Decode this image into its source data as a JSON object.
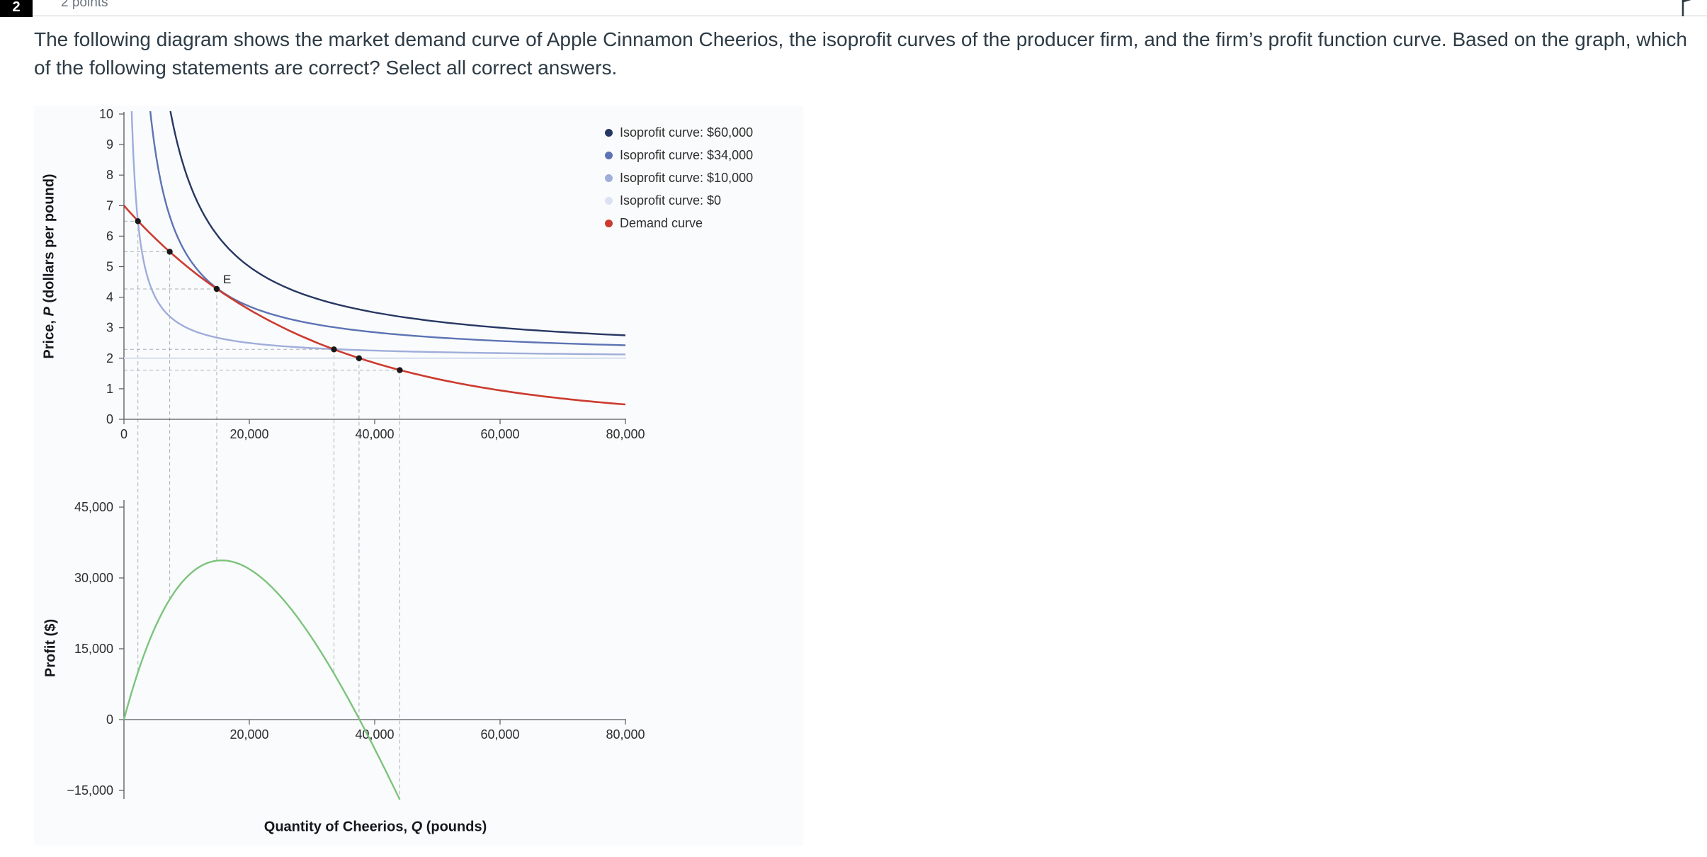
{
  "header": {
    "question_number": "2",
    "points_label": "2 points"
  },
  "question": {
    "text": "The following diagram shows the market demand curve of Apple Cinnamon Cheerios, the isoprofit curves of the producer firm, and the firm’s profit function curve. Based on the graph, which of the following statements are correct? Select all correct answers."
  },
  "chart_data": {
    "type": "line",
    "panels": [
      {
        "name": "price-quantity-panel",
        "ylabel_parts": [
          "Price, ",
          "P",
          " (dollars per pound)"
        ],
        "ylim": [
          0,
          10
        ],
        "yticks": [
          0,
          1,
          2,
          3,
          4,
          5,
          6,
          7,
          8,
          9,
          10
        ],
        "ytick_labels": [
          "0",
          "1",
          "2",
          "3",
          "4",
          "5",
          "6",
          "7",
          "8",
          "9",
          "10"
        ],
        "xlim": [
          0,
          80000
        ],
        "xticks": [
          0,
          20000,
          40000,
          60000,
          80000
        ],
        "xtick_labels": [
          "0",
          "20,000",
          "40,000",
          "60,000",
          "80,000"
        ],
        "grid": false,
        "legend_position": "top-right",
        "series": [
          {
            "name": "Isoprofit curve: $60,000",
            "color": "#273763",
            "model": "isoprofit",
            "profit_level": 60000,
            "marginal_cost": 2
          },
          {
            "name": "Isoprofit curve: $34,000",
            "color": "#5d73b4",
            "model": "isoprofit",
            "profit_level": 34000,
            "marginal_cost": 2
          },
          {
            "name": "Isoprofit curve: $10,000",
            "color": "#9fadda",
            "model": "isoprofit",
            "profit_level": 10000,
            "marginal_cost": 2
          },
          {
            "name": "Isoprofit curve: $0",
            "color": "#dce2f3",
            "model": "isoprofit",
            "profit_level": 0,
            "marginal_cost": 2
          },
          {
            "name": "Demand curve",
            "color": "#cc3b2f",
            "model": "demand_exponential",
            "p_intercept": 7,
            "q_decay": 30000
          }
        ],
        "marked_points": [
          {
            "q": 2230,
            "p": 6.49
          },
          {
            "q": 7300,
            "p": 5.49
          },
          {
            "q": 14800,
            "p": 4.27,
            "label": "E"
          },
          {
            "q": 33500,
            "p": 2.29
          },
          {
            "q": 37500,
            "p": 2.0
          },
          {
            "q": 44000,
            "p": 1.61
          }
        ]
      },
      {
        "name": "profit-quantity-panel",
        "ylabel": "Profit ($)",
        "ylim": [
          -15000,
          45000
        ],
        "yticks": [
          -15000,
          0,
          15000,
          30000,
          45000
        ],
        "ytick_labels": [
          "−15,000",
          "0",
          "15,000",
          "30,000",
          "45,000"
        ],
        "xticks": [
          20000,
          40000,
          60000,
          80000
        ],
        "xtick_labels": [
          "20,000",
          "40,000",
          "60,000",
          "80,000"
        ],
        "xlabel_parts": [
          "Quantity of Cheerios, ",
          "Q",
          " (pounds)"
        ],
        "series": [
          {
            "name": "Profit function",
            "color": "#7cc47c",
            "model": "profit_from_demand",
            "marginal_cost": 2,
            "q_range": [
              0,
              44300
            ],
            "peak_profit": 33000,
            "peak_q": 15000,
            "zero_profit_q": 37500
          }
        ]
      }
    ]
  }
}
